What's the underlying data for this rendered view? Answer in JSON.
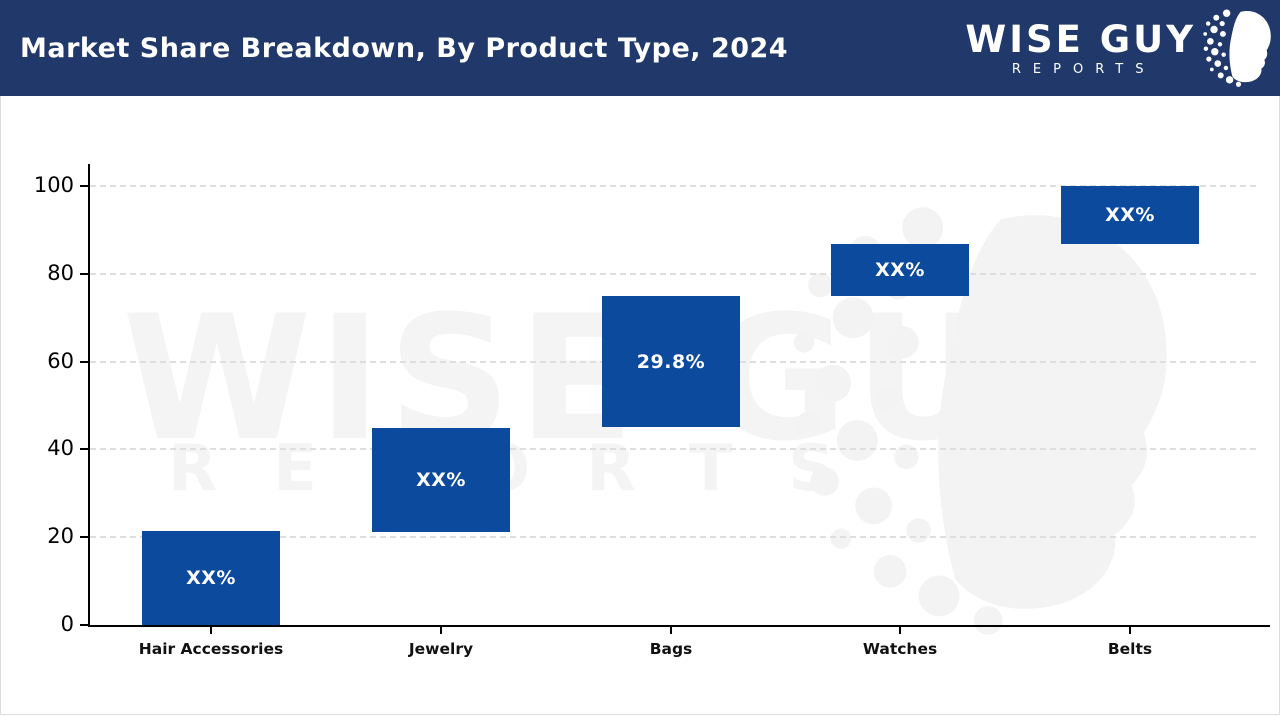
{
  "header": {
    "title": "Market Share Breakdown, By Product Type, 2024",
    "logo": {
      "brand": "WISE GUY",
      "sub": "REPORTS"
    }
  },
  "watermark": {
    "brand": "WISE GUY",
    "sub": "REPORTS"
  },
  "colors": {
    "header_bg": "#21386b",
    "bar": "#0c4a9e",
    "bar_label": "#ffffff",
    "grid": "#dedede",
    "axis": "#000000",
    "watermark": "#f4f4f4"
  },
  "chart_data": {
    "type": "bar",
    "subtype": "floating-waterfall",
    "title": "Market Share Breakdown, By Product Type, 2024",
    "categories": [
      "Hair Accessories",
      "Jewelry",
      "Bags",
      "Watches",
      "Belts"
    ],
    "bars": [
      {
        "category": "Hair Accessories",
        "start": 0,
        "end": 21.4,
        "label": "XX%"
      },
      {
        "category": "Jewelry",
        "start": 21.2,
        "end": 44.9,
        "label": "XX%"
      },
      {
        "category": "Bags",
        "start": 45.1,
        "end": 74.9,
        "label": "29.8%"
      },
      {
        "category": "Watches",
        "start": 74.9,
        "end": 86.8,
        "label": "XX%"
      },
      {
        "category": "Belts",
        "start": 86.8,
        "end": 100,
        "label": "XX%"
      }
    ],
    "xlabel": "",
    "ylabel": "",
    "ylim": [
      0,
      105
    ],
    "yticks": [
      0,
      20,
      40,
      60,
      80,
      100
    ],
    "grid": "horizontal-dashed",
    "legend": "none"
  }
}
